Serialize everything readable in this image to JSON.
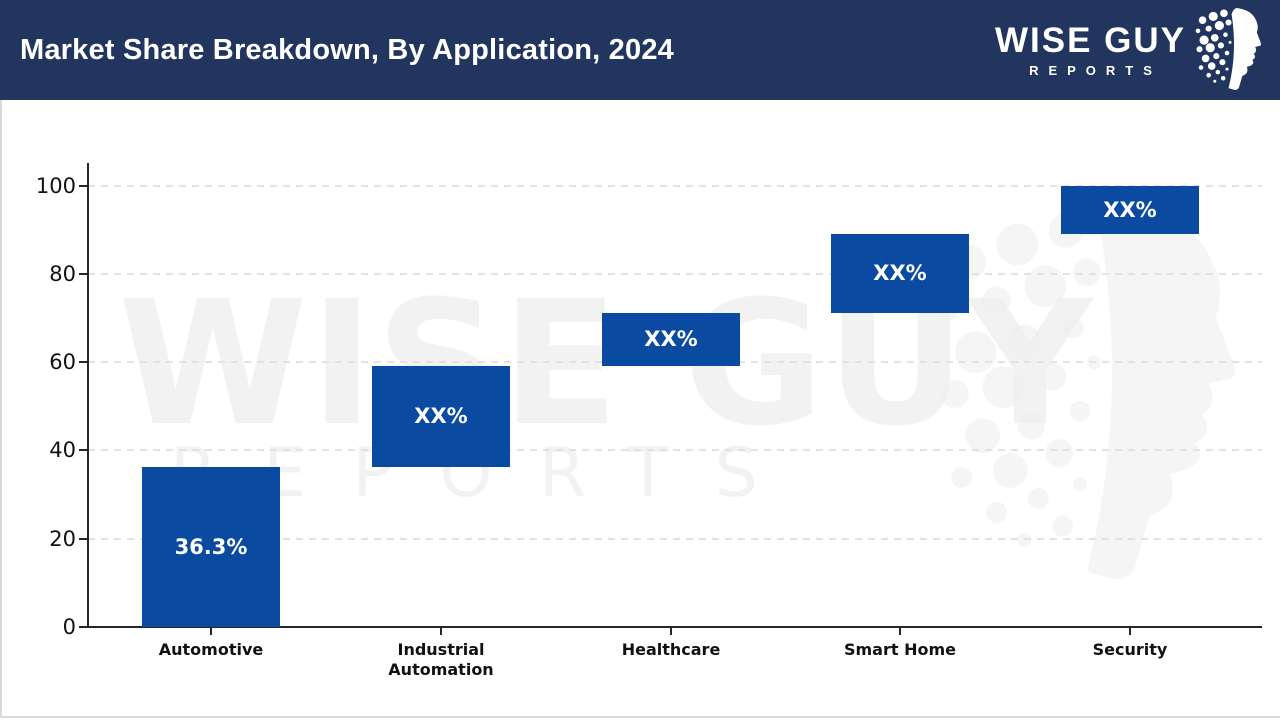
{
  "header": {
    "title": "Market Share Breakdown, By Application, 2024",
    "logo_line1": "WISE GUY",
    "logo_line2": "REPORTS"
  },
  "watermark": {
    "line1": "WISE GUY",
    "line2": "REPORTS"
  },
  "colors": {
    "header_bg": "#21355E",
    "bar": "#0A4AA0",
    "bar_label": "#FFFFFF",
    "axis": "#262626",
    "grid": "#E2E2E2",
    "tick_label": "#111111",
    "watermark": "#F2F2F2",
    "footer_line": "#D9D9D9"
  },
  "chart_data": {
    "type": "bar",
    "subtype": "floating-waterfall",
    "title": "Market Share Breakdown, By Application, 2024",
    "categories": [
      "Automotive",
      "Industrial Automation",
      "Healthcare",
      "Smart Home",
      "Security"
    ],
    "segments": [
      {
        "category": "Automotive",
        "start": 0,
        "end": 36.3,
        "label": "36.3%"
      },
      {
        "category": "Industrial Automation",
        "start": 36.3,
        "end": 59.2,
        "label": "XX%"
      },
      {
        "category": "Healthcare",
        "start": 59.2,
        "end": 71.1,
        "label": "XX%"
      },
      {
        "category": "Smart Home",
        "start": 71.1,
        "end": 89.1,
        "label": "XX%"
      },
      {
        "category": "Security",
        "start": 89.1,
        "end": 100,
        "label": "XX%"
      }
    ],
    "xlabel": "",
    "ylabel": "",
    "yticks": [
      0,
      20,
      40,
      60,
      80,
      100
    ],
    "ylim": [
      0,
      105
    ],
    "grid": "horizontal-dashed",
    "legend": "none"
  }
}
